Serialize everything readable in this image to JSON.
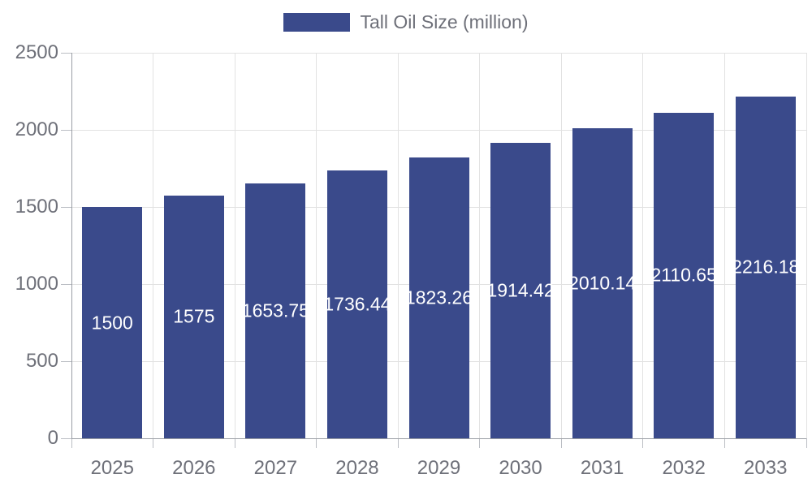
{
  "legend": {
    "label": "Tall Oil Size (million)"
  },
  "chart_data": {
    "type": "bar",
    "title": "Tall Oil Size (million)",
    "categories": [
      "2025",
      "2026",
      "2027",
      "2028",
      "2029",
      "2030",
      "2031",
      "2032",
      "2033"
    ],
    "values": [
      1500,
      1575,
      1653.75,
      1736.44,
      1823.26,
      1914.42,
      2010.14,
      2110.65,
      2216.18
    ],
    "value_labels": [
      "1500",
      "1575",
      "1653.75",
      "1736.44",
      "1823.26",
      "1914.42",
      "2010.14",
      "2110.65",
      "2216.18"
    ],
    "series_name": "Tall Oil Size (million)",
    "xlabel": "",
    "ylabel": "",
    "ylim": [
      0,
      2500
    ],
    "yticks": [
      0,
      500,
      1000,
      1500,
      2000,
      2500
    ],
    "grid": "on",
    "legend_position": "top-center",
    "bar_label_position": "inside-center",
    "colors": {
      "bar": "#3A4A8B",
      "bar_label": "#FFFFFF",
      "axis_text": "#6E7079",
      "legend_text": "#6E7079",
      "grid_line": "#E2E2E2",
      "tick_line": "#BBBEC4",
      "axis_line": "#9A9EA5",
      "background": "#FFFFFF"
    }
  }
}
